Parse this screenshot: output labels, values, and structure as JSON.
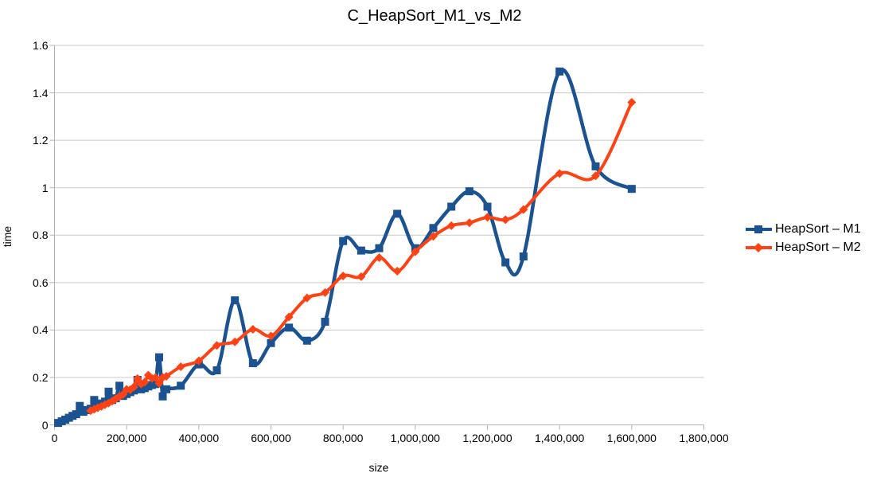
{
  "colors": {
    "m1_blue": "#1b5291",
    "m2_orange": "#ff4214",
    "gridline": "#c9c9c9",
    "axis": "#b3b3b3",
    "text": "#000000",
    "background": "#ffffff"
  },
  "chart_data": {
    "type": "line",
    "title": "C_HeapSort_M1_vs_M2",
    "xlabel": "size",
    "ylabel": "time",
    "xlim": [
      0,
      1800000
    ],
    "ylim": [
      0,
      1.6
    ],
    "grid": "horizontal",
    "line_style": "smoothed",
    "legend_position": "right",
    "x_ticks": {
      "values": [
        0,
        200000,
        400000,
        600000,
        800000,
        1000000,
        1200000,
        1400000,
        1600000,
        1800000
      ],
      "labels": [
        "0",
        "200,000",
        "400,000",
        "600,000",
        "800,000",
        "1,000,000",
        "1,200,000",
        "1,400,000",
        "1,600,000",
        "1,800,000"
      ]
    },
    "y_ticks": {
      "values": [
        0,
        0.2,
        0.4,
        0.6,
        0.8,
        1,
        1.2,
        1.4,
        1.6
      ],
      "labels": [
        "0",
        "0.2",
        "0.4",
        "0.6",
        "0.8",
        "1",
        "1.2",
        "1.4",
        "1.6"
      ]
    },
    "series": [
      {
        "name": "HeapSort – M1",
        "marker": "square",
        "color_key": "m1_blue",
        "x": [
          10000,
          20000,
          30000,
          40000,
          50000,
          60000,
          70000,
          80000,
          90000,
          100000,
          110000,
          120000,
          130000,
          140000,
          150000,
          160000,
          170000,
          180000,
          190000,
          200000,
          210000,
          220000,
          230000,
          240000,
          250000,
          260000,
          270000,
          280000,
          290000,
          300000,
          310000,
          350000,
          400000,
          450000,
          500000,
          550000,
          600000,
          650000,
          700000,
          750000,
          800000,
          850000,
          900000,
          950000,
          1000000,
          1050000,
          1100000,
          1150000,
          1200000,
          1250000,
          1300000,
          1400000,
          1500000,
          1600000
        ],
        "y": [
          0.008,
          0.015,
          0.022,
          0.03,
          0.038,
          0.045,
          0.08,
          0.055,
          0.062,
          0.068,
          0.105,
          0.082,
          0.09,
          0.098,
          0.14,
          0.105,
          0.112,
          0.165,
          0.122,
          0.13,
          0.138,
          0.145,
          0.19,
          0.15,
          0.155,
          0.162,
          0.168,
          0.172,
          0.285,
          0.12,
          0.15,
          0.165,
          0.255,
          0.23,
          0.525,
          0.26,
          0.345,
          0.41,
          0.355,
          0.435,
          0.775,
          0.735,
          0.745,
          0.89,
          0.745,
          0.83,
          0.92,
          0.985,
          0.92,
          0.685,
          0.71,
          1.49,
          1.09,
          0.995
        ]
      },
      {
        "name": "HeapSort – M2",
        "marker": "diamond",
        "color_key": "m2_orange",
        "x": [
          100000,
          110000,
          120000,
          130000,
          140000,
          150000,
          160000,
          170000,
          180000,
          190000,
          200000,
          210000,
          220000,
          230000,
          240000,
          250000,
          260000,
          270000,
          280000,
          290000,
          300000,
          310000,
          350000,
          400000,
          450000,
          500000,
          550000,
          600000,
          650000,
          700000,
          750000,
          800000,
          850000,
          900000,
          950000,
          1000000,
          1050000,
          1100000,
          1150000,
          1200000,
          1250000,
          1300000,
          1400000,
          1500000,
          1600000
        ],
        "y": [
          0.06,
          0.066,
          0.072,
          0.078,
          0.085,
          0.092,
          0.1,
          0.11,
          0.12,
          0.128,
          0.15,
          0.148,
          0.16,
          0.195,
          0.172,
          0.18,
          0.21,
          0.196,
          0.2,
          0.175,
          0.2,
          0.205,
          0.245,
          0.27,
          0.335,
          0.35,
          0.403,
          0.375,
          0.455,
          0.535,
          0.558,
          0.628,
          0.625,
          0.705,
          0.648,
          0.73,
          0.795,
          0.84,
          0.852,
          0.875,
          0.865,
          0.908,
          1.06,
          1.05,
          1.36
        ]
      }
    ]
  }
}
